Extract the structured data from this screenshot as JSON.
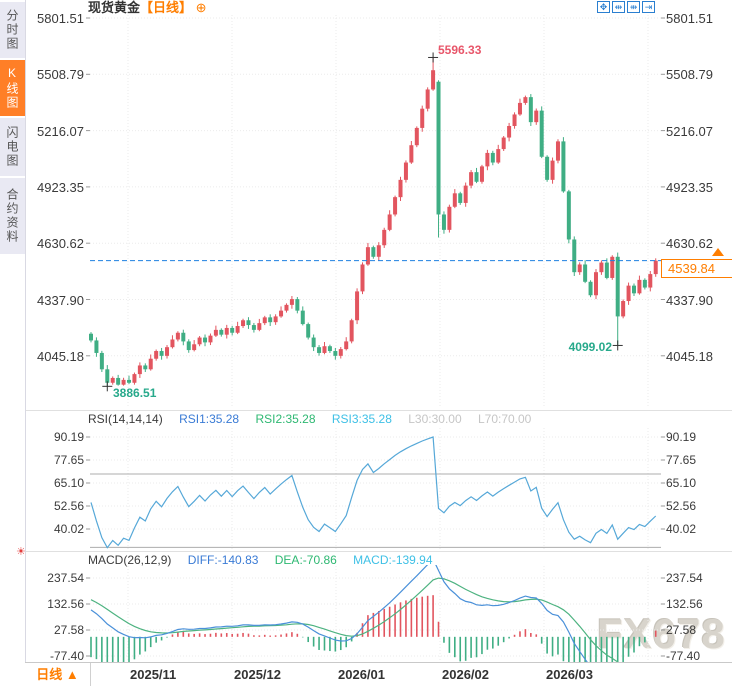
{
  "sidebar": {
    "tabs": [
      {
        "label": "分时图",
        "active": false
      },
      {
        "label": "K线图",
        "active": true
      },
      {
        "label": "闪电图",
        "active": false
      },
      {
        "label": "合约资料",
        "active": false
      }
    ]
  },
  "header": {
    "title": "现货黄金",
    "period_tag": "【日线】",
    "settings_glyph": "⊕"
  },
  "toolbar": {
    "icons": [
      {
        "name": "fit-chart",
        "glyph": "✥"
      },
      {
        "name": "zoom-horizontal",
        "glyph": "⇹"
      },
      {
        "name": "pan-forward",
        "glyph": "⇻"
      },
      {
        "name": "jump-to-latest",
        "glyph": "⇥"
      }
    ]
  },
  "bottom_bar": {
    "period_label": "日线",
    "arrow": "▲",
    "x_labels": [
      "2025/11",
      "2025/12",
      "2026/01",
      "2026/02",
      "2026/03"
    ]
  },
  "watermark": "FX678",
  "rsi_panel": {
    "title": "RSI(14,14,14)",
    "items": [
      {
        "label": "RSI1:35.28"
      },
      {
        "label": "RSI2:35.28"
      },
      {
        "label": "RSI3:35.28"
      },
      {
        "label": "L30:30.00"
      },
      {
        "label": "L70:70.00"
      }
    ],
    "scale": [
      "90.19",
      "77.65",
      "65.10",
      "52.56",
      "40.02"
    ]
  },
  "macd_panel": {
    "title": "MACD(26,12,9)",
    "items": [
      {
        "label": "DIFF:-140.83"
      },
      {
        "label": "DEA:-70.86"
      },
      {
        "label": "MACD:-139.94"
      }
    ],
    "scale": [
      "237.54",
      "132.56",
      "27.58",
      "-77.40"
    ]
  },
  "price_scale": [
    "5801.51",
    "5508.79",
    "5216.07",
    "4923.35",
    "4630.62",
    "4337.90",
    "4045.18"
  ],
  "annotations": {
    "high": "5596.33",
    "low": "3886.51",
    "swing_low": "4099.02",
    "last_price": "4539.84"
  },
  "colors": {
    "up": "#e2555f",
    "down": "#3fae84",
    "dashed_line": "#1f80e1",
    "accent_orange": "#ff7e00",
    "rsi_line": "#56a8d8",
    "macd_diff": "#4a90d9",
    "macd_dea": "#4eb381",
    "hist_pos": "#e2555f",
    "hist_neg": "#3fae84",
    "grid": "#ebebeb",
    "level_line": "#adadad",
    "cross": "#333333"
  },
  "chart_data": {
    "type": "candlestick",
    "title": "现货黄金 日线 (Spot Gold Daily)",
    "x_labels": [
      "2025/11",
      "2025/12",
      "2026/01",
      "2026/02",
      "2026/03"
    ],
    "price_ticks": [
      5801.51,
      5508.79,
      5216.07,
      4923.35,
      4630.62,
      4337.9,
      4045.18
    ],
    "key_points": {
      "high": 5596.33,
      "low": 3886.51,
      "swing_low": 4099.02,
      "last_price": 4539.84,
      "high_index": 63,
      "low_index": 3,
      "swing_low_index": 97
    },
    "rsi": {
      "params": [
        14,
        14,
        14
      ],
      "rsi1": 35.28,
      "rsi2": 35.28,
      "rsi3": 35.28,
      "levels": [
        30.0,
        70.0
      ],
      "ticks": [
        90.19,
        77.65,
        65.1,
        52.56,
        40.02
      ]
    },
    "macd": {
      "params": [
        26,
        12,
        9
      ],
      "diff": -140.83,
      "dea": -70.86,
      "macd": -139.94,
      "ticks": [
        237.54,
        132.56,
        27.58,
        -77.4
      ]
    },
    "candles": [
      [
        4160,
        4168,
        4115,
        4125
      ],
      [
        4125,
        4141,
        4040,
        4060
      ],
      [
        4060,
        4071,
        3961,
        3975
      ],
      [
        3975,
        3997,
        3886.51,
        3905
      ],
      [
        3905,
        3938,
        3895,
        3930
      ],
      [
        3930,
        3946,
        3890,
        3895
      ],
      [
        3895,
        3931,
        3890,
        3920
      ],
      [
        3920,
        3942,
        3898,
        3905
      ],
      [
        3905,
        3958,
        3895,
        3950
      ],
      [
        3950,
        4011,
        3930,
        3995
      ],
      [
        3995,
        4006,
        3961,
        3975
      ],
      [
        3975,
        4052,
        3968,
        4030
      ],
      [
        4030,
        4078,
        4020,
        4070
      ],
      [
        4070,
        4086,
        4025,
        4045
      ],
      [
        4045,
        4101,
        4031,
        4090
      ],
      [
        4090,
        4152,
        4083,
        4130
      ],
      [
        4130,
        4173,
        4120,
        4165
      ],
      [
        4165,
        4181,
        4100,
        4120
      ],
      [
        4120,
        4131,
        4061,
        4075
      ],
      [
        4075,
        4127,
        4068,
        4105
      ],
      [
        4105,
        4148,
        4095,
        4140
      ],
      [
        4140,
        4156,
        4095,
        4115
      ],
      [
        4115,
        4161,
        4101,
        4150
      ],
      [
        4150,
        4202,
        4143,
        4180
      ],
      [
        4180,
        4188,
        4145,
        4155
      ],
      [
        4155,
        4206,
        4135,
        4190
      ],
      [
        4190,
        4201,
        4151,
        4165
      ],
      [
        4165,
        4222,
        4158,
        4200
      ],
      [
        4200,
        4238,
        4190,
        4230
      ],
      [
        4230,
        4246,
        4185,
        4205
      ],
      [
        4205,
        4216,
        4166,
        4180
      ],
      [
        4180,
        4237,
        4173,
        4215
      ],
      [
        4215,
        4253,
        4205,
        4245
      ],
      [
        4245,
        4261,
        4200,
        4220
      ],
      [
        4220,
        4261,
        4206,
        4250
      ],
      [
        4250,
        4302,
        4243,
        4280
      ],
      [
        4280,
        4318,
        4270,
        4310
      ],
      [
        4310,
        4356,
        4290,
        4340
      ],
      [
        4340,
        4351,
        4266,
        4280
      ],
      [
        4280,
        4302,
        4203,
        4210
      ],
      [
        4210,
        4218,
        4130,
        4140
      ],
      [
        4140,
        4156,
        4070,
        4090
      ],
      [
        4090,
        4101,
        4046,
        4060
      ],
      [
        4060,
        4117,
        4053,
        4095
      ],
      [
        4095,
        4103,
        4060,
        4070
      ],
      [
        4070,
        4086,
        4025,
        4045
      ],
      [
        4045,
        4091,
        4031,
        4080
      ],
      [
        4080,
        4142,
        4073,
        4120
      ],
      [
        4120,
        4238,
        4110,
        4230
      ],
      [
        4230,
        4396,
        4210,
        4380
      ],
      [
        4380,
        4531,
        4366,
        4520
      ],
      [
        4520,
        4632,
        4513,
        4610
      ],
      [
        4610,
        4618,
        4550,
        4560
      ],
      [
        4560,
        4636,
        4540,
        4620
      ],
      [
        4620,
        4711,
        4606,
        4700
      ],
      [
        4700,
        4802,
        4693,
        4780
      ],
      [
        4780,
        4878,
        4770,
        4870
      ],
      [
        4870,
        4976,
        4850,
        4960
      ],
      [
        4960,
        5061,
        4946,
        5050
      ],
      [
        5050,
        5162,
        5043,
        5140
      ],
      [
        5140,
        5238,
        5130,
        5230
      ],
      [
        5230,
        5346,
        5210,
        5330
      ],
      [
        5330,
        5441,
        5316,
        5430
      ],
      [
        5430,
        5596.33,
        5423,
        5530
      ],
      [
        5470,
        5478,
        4660,
        4780
      ],
      [
        4780,
        4796,
        4680,
        4700
      ],
      [
        4700,
        4831,
        4686,
        4820
      ],
      [
        4820,
        4912,
        4813,
        4890
      ],
      [
        4890,
        4898,
        4830,
        4840
      ],
      [
        4840,
        4946,
        4820,
        4930
      ],
      [
        4930,
        5011,
        4916,
        5000
      ],
      [
        5000,
        5022,
        4943,
        4950
      ],
      [
        4950,
        5038,
        4940,
        5030
      ],
      [
        5030,
        5116,
        5010,
        5100
      ],
      [
        5100,
        5111,
        5036,
        5050
      ],
      [
        5050,
        5142,
        5043,
        5120
      ],
      [
        5120,
        5188,
        5110,
        5180
      ],
      [
        5180,
        5256,
        5160,
        5240
      ],
      [
        5240,
        5311,
        5226,
        5300
      ],
      [
        5300,
        5382,
        5293,
        5360
      ],
      [
        5360,
        5398,
        5350,
        5390
      ],
      [
        5390,
        5406,
        5240,
        5260
      ],
      [
        5260,
        5331,
        5246,
        5320
      ],
      [
        5320,
        5342,
        5073,
        5080
      ],
      [
        5080,
        5088,
        4950,
        4960
      ],
      [
        4960,
        5076,
        4940,
        5060
      ],
      [
        5060,
        5171,
        5046,
        5160
      ],
      [
        5160,
        5182,
        4893,
        4900
      ],
      [
        4900,
        4908,
        4630,
        4650
      ],
      [
        4650,
        4666,
        4460,
        4480
      ],
      [
        4480,
        4531,
        4466,
        4520
      ],
      [
        4520,
        4542,
        4423,
        4430
      ],
      [
        4430,
        4438,
        4350,
        4360
      ],
      [
        4360,
        4496,
        4340,
        4480
      ],
      [
        4480,
        4541,
        4466,
        4530
      ],
      [
        4530,
        4552,
        4443,
        4450
      ],
      [
        4450,
        4568,
        4440,
        4560
      ],
      [
        4560,
        4582,
        4099.02,
        4250
      ],
      [
        4250,
        4338,
        4240,
        4330
      ],
      [
        4330,
        4426,
        4310,
        4410
      ],
      [
        4410,
        4421,
        4356,
        4370
      ],
      [
        4370,
        4462,
        4363,
        4440
      ],
      [
        4440,
        4448,
        4390,
        4400
      ],
      [
        4400,
        4486,
        4380,
        4470
      ],
      [
        4470,
        4552,
        4456,
        4539.84
      ]
    ]
  }
}
